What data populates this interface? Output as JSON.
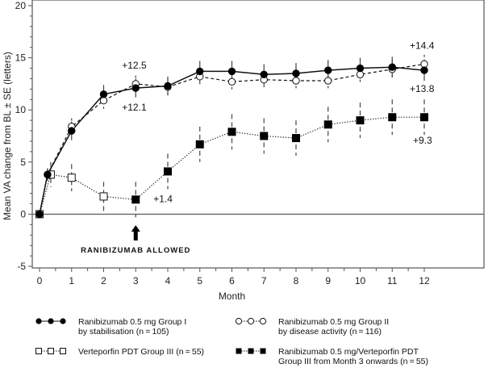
{
  "chart_data": {
    "type": "line",
    "title": "",
    "xlabel": "Month",
    "ylabel": "Mean VA change from BL ± SE (letters)",
    "xlim": [
      0,
      12
    ],
    "ylim": [
      -5,
      20
    ],
    "x_ticks": [
      "0",
      "1",
      "2",
      "3",
      "4",
      "5",
      "6",
      "7",
      "8",
      "9",
      "10",
      "11",
      "12"
    ],
    "y_ticks": [
      "-5",
      "0",
      "5",
      "10",
      "15",
      "20"
    ],
    "grid": false,
    "series": [
      {
        "name": "Ranibizumab 0.5 mg Group I by stabilisation (n=105)",
        "legend_line1": "Ranibizumab 0.5 mg Group I",
        "legend_line2": "by stabilisation (n = 105)",
        "marker": "filled-circle",
        "line": "solid",
        "x": [
          0,
          0.25,
          1,
          2,
          3,
          4,
          5,
          6,
          7,
          8,
          9,
          10,
          11,
          12
        ],
        "y": [
          0,
          3.8,
          8.0,
          11.5,
          12.1,
          12.3,
          13.7,
          13.7,
          13.4,
          13.5,
          13.8,
          14.0,
          14.1,
          13.8
        ],
        "se": [
          0,
          0.6,
          0.9,
          0.9,
          0.9,
          0.9,
          1.0,
          1.0,
          1.0,
          1.0,
          1.0,
          1.0,
          1.0,
          1.0
        ]
      },
      {
        "name": "Ranibizumab 0.5 mg Group II by disease activity (n=116)",
        "legend_line1": "Ranibizumab 0.5 mg Group II",
        "legend_line2": "by disease activity (n = 116)",
        "marker": "open-circle",
        "line": "dashed",
        "x": [
          0,
          0.25,
          1,
          2,
          3,
          4,
          5,
          6,
          7,
          8,
          9,
          10,
          11,
          12
        ],
        "y": [
          0,
          3.8,
          8.4,
          10.9,
          12.5,
          12.2,
          13.2,
          12.7,
          12.9,
          12.8,
          12.8,
          13.4,
          13.9,
          14.4
        ],
        "se": [
          0,
          0.6,
          0.8,
          0.8,
          0.8,
          0.8,
          0.9,
          0.9,
          0.9,
          0.9,
          0.9,
          0.9,
          0.9,
          0.9
        ]
      },
      {
        "name": "Verteporfin PDT Group III (n=55)",
        "legend_line1": "Verteporfin PDT Group III (n = 55)",
        "legend_line2": "",
        "marker": "open-square",
        "line": "dotted",
        "x": [
          0,
          0.35,
          1,
          2
        ],
        "y": [
          0,
          3.8,
          3.5,
          1.7
        ],
        "se": [
          0,
          1.2,
          1.3,
          1.4
        ]
      },
      {
        "name": "Ranibizumab 0.5 mg/Verteporfin PDT Group III from Month 3 onwards (n=55)",
        "legend_line1": "Ranibizumab 0.5 mg/Verteporfin PDT",
        "legend_line2": "Group III from Month 3 onwards (n = 55)",
        "marker": "filled-square",
        "line": "dotted",
        "x": [
          3,
          4,
          5,
          6,
          7,
          8,
          9,
          10,
          11,
          12
        ],
        "y": [
          1.4,
          4.1,
          6.7,
          7.9,
          7.5,
          7.3,
          8.6,
          9.0,
          9.3,
          9.3
        ],
        "se": [
          1.7,
          1.7,
          1.7,
          1.7,
          1.7,
          1.7,
          1.7,
          1.7,
          1.7,
          1.7
        ]
      }
    ],
    "annotations": [
      {
        "text": "+12.5",
        "x": 3,
        "y": 12.5
      },
      {
        "text": "+12.1",
        "x": 3,
        "y": 12.1
      },
      {
        "text": "+1.4",
        "x": 3,
        "y": 1.4
      },
      {
        "text": "+14.4",
        "x": 12,
        "y": 14.4
      },
      {
        "text": "+13.8",
        "x": 12,
        "y": 13.8
      },
      {
        "text": "+9.3",
        "x": 12,
        "y": 9.3
      }
    ],
    "callout": {
      "text": "RANIBIZUMAB ALLOWED",
      "x": 3
    },
    "legend_position": "bottom"
  }
}
